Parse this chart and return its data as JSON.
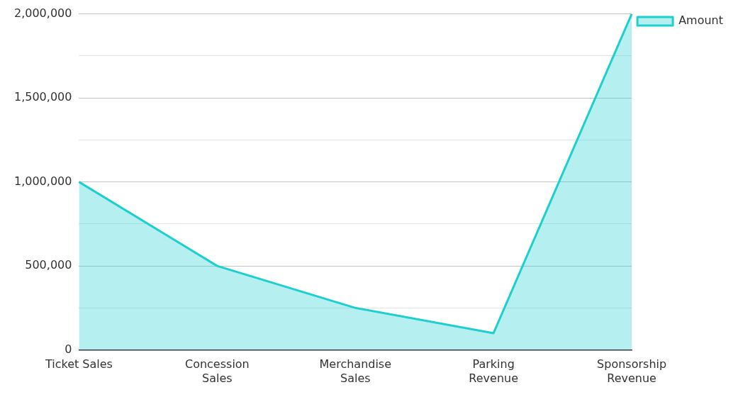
{
  "chart_data": {
    "type": "area",
    "categories": [
      "Ticket Sales",
      "Concession Sales",
      "Merchandise Sales",
      "Parking Revenue",
      "Sponsorship Revenue"
    ],
    "series": [
      {
        "name": "Amount",
        "color": "#1ecfcf",
        "values": [
          1000000,
          500000,
          250000,
          100000,
          2000000
        ]
      }
    ],
    "ylim": [
      0,
      2000000
    ],
    "yticks": [
      0,
      {
        "value": 250000,
        "label": null
      },
      {
        "value": 500000,
        "label": "500,000"
      },
      {
        "value": 750000,
        "label": null
      },
      {
        "value": 1000000,
        "label": "1,000,000"
      },
      {
        "value": 1250000,
        "label": null
      },
      {
        "value": 1500000,
        "label": "1,500,000"
      },
      {
        "value": 1750000,
        "label": null
      },
      {
        "value": 2000000,
        "label": "2,000,000"
      }
    ],
    "grid": "y",
    "legend": "top right",
    "marker": "none"
  }
}
